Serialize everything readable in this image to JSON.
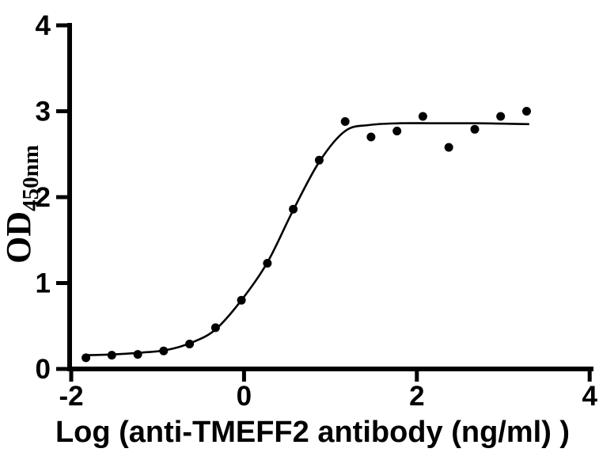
{
  "figure": {
    "background_color": "#ffffff",
    "axis_color": "#000000"
  },
  "chart_data": {
    "type": "scatter",
    "title": "",
    "xlabel": "Log (anti-TMEFF2 antibody (ng/ml) )",
    "ylabel_main": "OD",
    "ylabel_sub": "450nm",
    "legend": "none",
    "grid": "off",
    "marker_color": "#000000",
    "line_color": "#000000",
    "x_axis": {
      "range": [
        -2,
        4
      ],
      "tick_values": [
        -2,
        0,
        2,
        4
      ],
      "tick_labels": [
        "-2",
        "0",
        "2",
        "4"
      ]
    },
    "y_axis": {
      "range": [
        0,
        4
      ],
      "tick_values": [
        0,
        1,
        2,
        3,
        4
      ],
      "tick_labels": [
        "0",
        "1",
        "2",
        "3",
        "4"
      ]
    },
    "points": [
      [
        -1.83,
        0.13
      ],
      [
        -1.53,
        0.16
      ],
      [
        -1.23,
        0.17
      ],
      [
        -0.93,
        0.21
      ],
      [
        -0.63,
        0.29
      ],
      [
        -0.33,
        0.48
      ],
      [
        -0.03,
        0.8
      ],
      [
        0.27,
        1.23
      ],
      [
        0.57,
        1.86
      ],
      [
        0.87,
        2.43
      ],
      [
        1.17,
        2.88
      ],
      [
        1.47,
        2.7
      ],
      [
        1.77,
        2.77
      ],
      [
        2.07,
        2.94
      ],
      [
        2.37,
        2.58
      ],
      [
        2.67,
        2.79
      ],
      [
        2.97,
        2.94
      ],
      [
        3.27,
        3.0
      ]
    ],
    "fit_curve": {
      "type": "4PL sigmoid fit",
      "bottom": 0.16,
      "top": 2.86,
      "log_ec50": 0.4,
      "anchors": [
        [
          -1.83,
          0.16
        ],
        [
          -1.5,
          0.17
        ],
        [
          -1.2,
          0.19
        ],
        [
          -0.9,
          0.22
        ],
        [
          -0.6,
          0.31
        ],
        [
          -0.33,
          0.46
        ],
        [
          -0.03,
          0.8
        ],
        [
          0.27,
          1.24
        ],
        [
          0.57,
          1.85
        ],
        [
          0.87,
          2.41
        ],
        [
          1.17,
          2.77
        ],
        [
          1.45,
          2.84
        ],
        [
          1.8,
          2.86
        ],
        [
          2.2,
          2.86
        ],
        [
          2.7,
          2.86
        ],
        [
          3.0,
          2.855
        ],
        [
          3.3,
          2.85
        ]
      ]
    }
  }
}
